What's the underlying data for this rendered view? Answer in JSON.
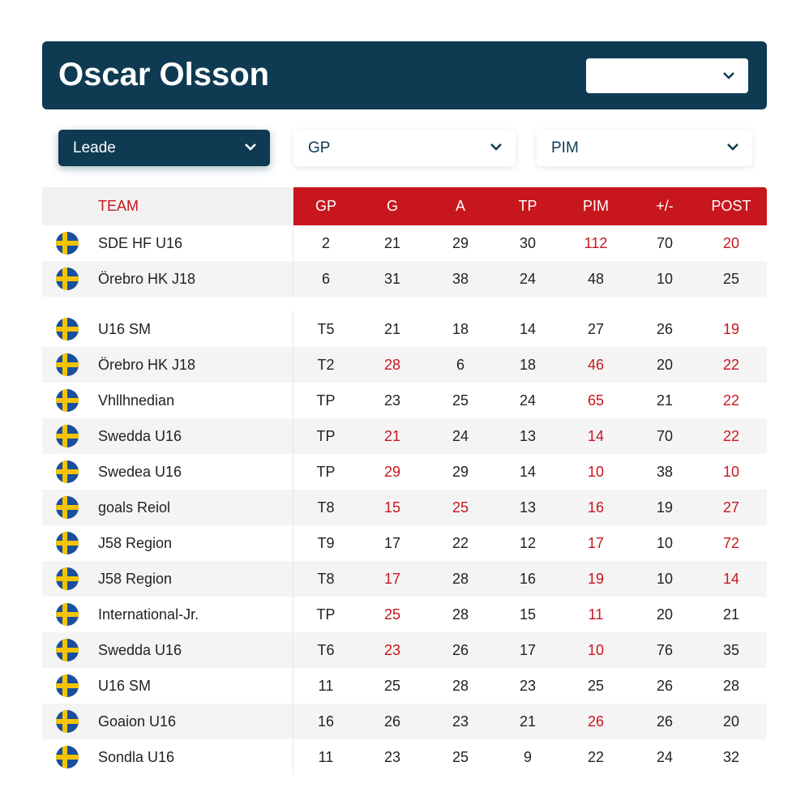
{
  "header": {
    "title": "Oscar Olsson"
  },
  "filters": [
    "Leade",
    "GP",
    "PIM"
  ],
  "table": {
    "columns": [
      "TEAM",
      "GP",
      "G",
      "A",
      "TP",
      "PIM",
      "+/-",
      "POST"
    ],
    "highlight_color": "#c8161d",
    "rows": [
      {
        "team": "SDE HF U16",
        "stats": [
          2,
          21,
          29,
          30,
          112,
          70,
          20
        ],
        "highlight": [
          4,
          6
        ]
      },
      {
        "team": "Örebro HK J18",
        "stats": [
          6,
          31,
          38,
          24,
          48,
          10,
          25
        ],
        "highlight": []
      },
      {
        "team": "U16 SM",
        "stats": [
          "T5",
          21,
          18,
          14,
          27,
          26,
          19
        ],
        "highlight": [
          6
        ]
      },
      {
        "team": "Örebro HK J18",
        "stats": [
          "T2",
          28,
          6,
          18,
          46,
          20,
          22
        ],
        "highlight": [
          1,
          4,
          6
        ]
      },
      {
        "team": "Vhllhnedian",
        "stats": [
          "TP",
          23,
          25,
          24,
          65,
          21,
          22
        ],
        "highlight": [
          4,
          6
        ]
      },
      {
        "team": "Swedda U16",
        "stats": [
          "TP",
          21,
          24,
          13,
          14,
          70,
          22
        ],
        "highlight": [
          1,
          4,
          6
        ]
      },
      {
        "team": "Swedea U16",
        "stats": [
          "TP",
          29,
          29,
          14,
          10,
          38,
          10
        ],
        "highlight": [
          1,
          4,
          6
        ]
      },
      {
        "team": "goals Reiol",
        "stats": [
          "T8",
          15,
          25,
          13,
          16,
          19,
          27
        ],
        "highlight": [
          1,
          2,
          4,
          6
        ]
      },
      {
        "team": "J58 Region",
        "stats": [
          "T9",
          17,
          22,
          12,
          17,
          10,
          72
        ],
        "highlight": [
          4,
          6
        ]
      },
      {
        "team": "J58 Region",
        "stats": [
          "T8",
          17,
          28,
          16,
          19,
          10,
          14
        ],
        "highlight": [
          1,
          4,
          6
        ]
      },
      {
        "team": "International-Jr.",
        "stats": [
          "TP",
          25,
          28,
          15,
          11,
          20,
          21
        ],
        "highlight": [
          1,
          4
        ]
      },
      {
        "team": "Swedda U16",
        "stats": [
          "T6",
          23,
          26,
          17,
          10,
          76,
          35
        ],
        "highlight": [
          1,
          4
        ]
      },
      {
        "team": "U16 SM",
        "stats": [
          11,
          25,
          28,
          23,
          25,
          26,
          28
        ],
        "highlight": []
      },
      {
        "team": "Goaion U16",
        "stats": [
          16,
          26,
          23,
          21,
          26,
          26,
          20
        ],
        "highlight": [
          4
        ]
      },
      {
        "team": "Sondla U16",
        "stats": [
          11,
          23,
          25,
          9,
          22,
          24,
          32
        ],
        "highlight": []
      }
    ]
  }
}
